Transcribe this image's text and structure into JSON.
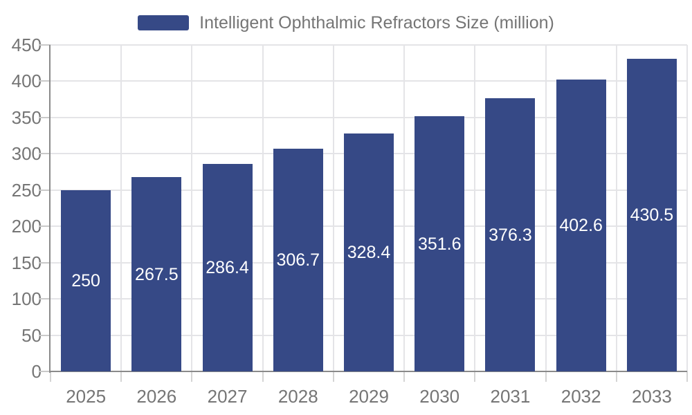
{
  "legend": {
    "label": "Intelligent Ophthalmic Refractors Size (million)"
  },
  "chart_data": {
    "type": "bar",
    "title": "Intelligent Ophthalmic Refractors Size (million)",
    "series_name": "Intelligent Ophthalmic Refractors Size (million)",
    "categories": [
      "2025",
      "2026",
      "2027",
      "2028",
      "2029",
      "2030",
      "2031",
      "2032",
      "2033"
    ],
    "values": [
      250,
      267.5,
      286.4,
      306.7,
      328.4,
      351.6,
      376.3,
      402.6,
      430.5
    ],
    "value_labels": [
      "250",
      "267.5",
      "286.4",
      "306.7",
      "328.4",
      "351.6",
      "376.3",
      "402.6",
      "430.5"
    ],
    "xlabel": "",
    "ylabel": "",
    "ylim": [
      0,
      450
    ],
    "ytick_step": 50,
    "ytick_labels": [
      "0",
      "50",
      "100",
      "150",
      "200",
      "250",
      "300",
      "350",
      "400",
      "450"
    ],
    "grid": "on",
    "legend_position": "top-center",
    "value_label_position": "inside-middle",
    "colors": {
      "bar": "#364986",
      "value_label": "#ffffff",
      "axis_text": "#757575",
      "axis_line": "#8a8a8a",
      "gridline": "#e4e4e7",
      "background": "#ffffff"
    }
  }
}
